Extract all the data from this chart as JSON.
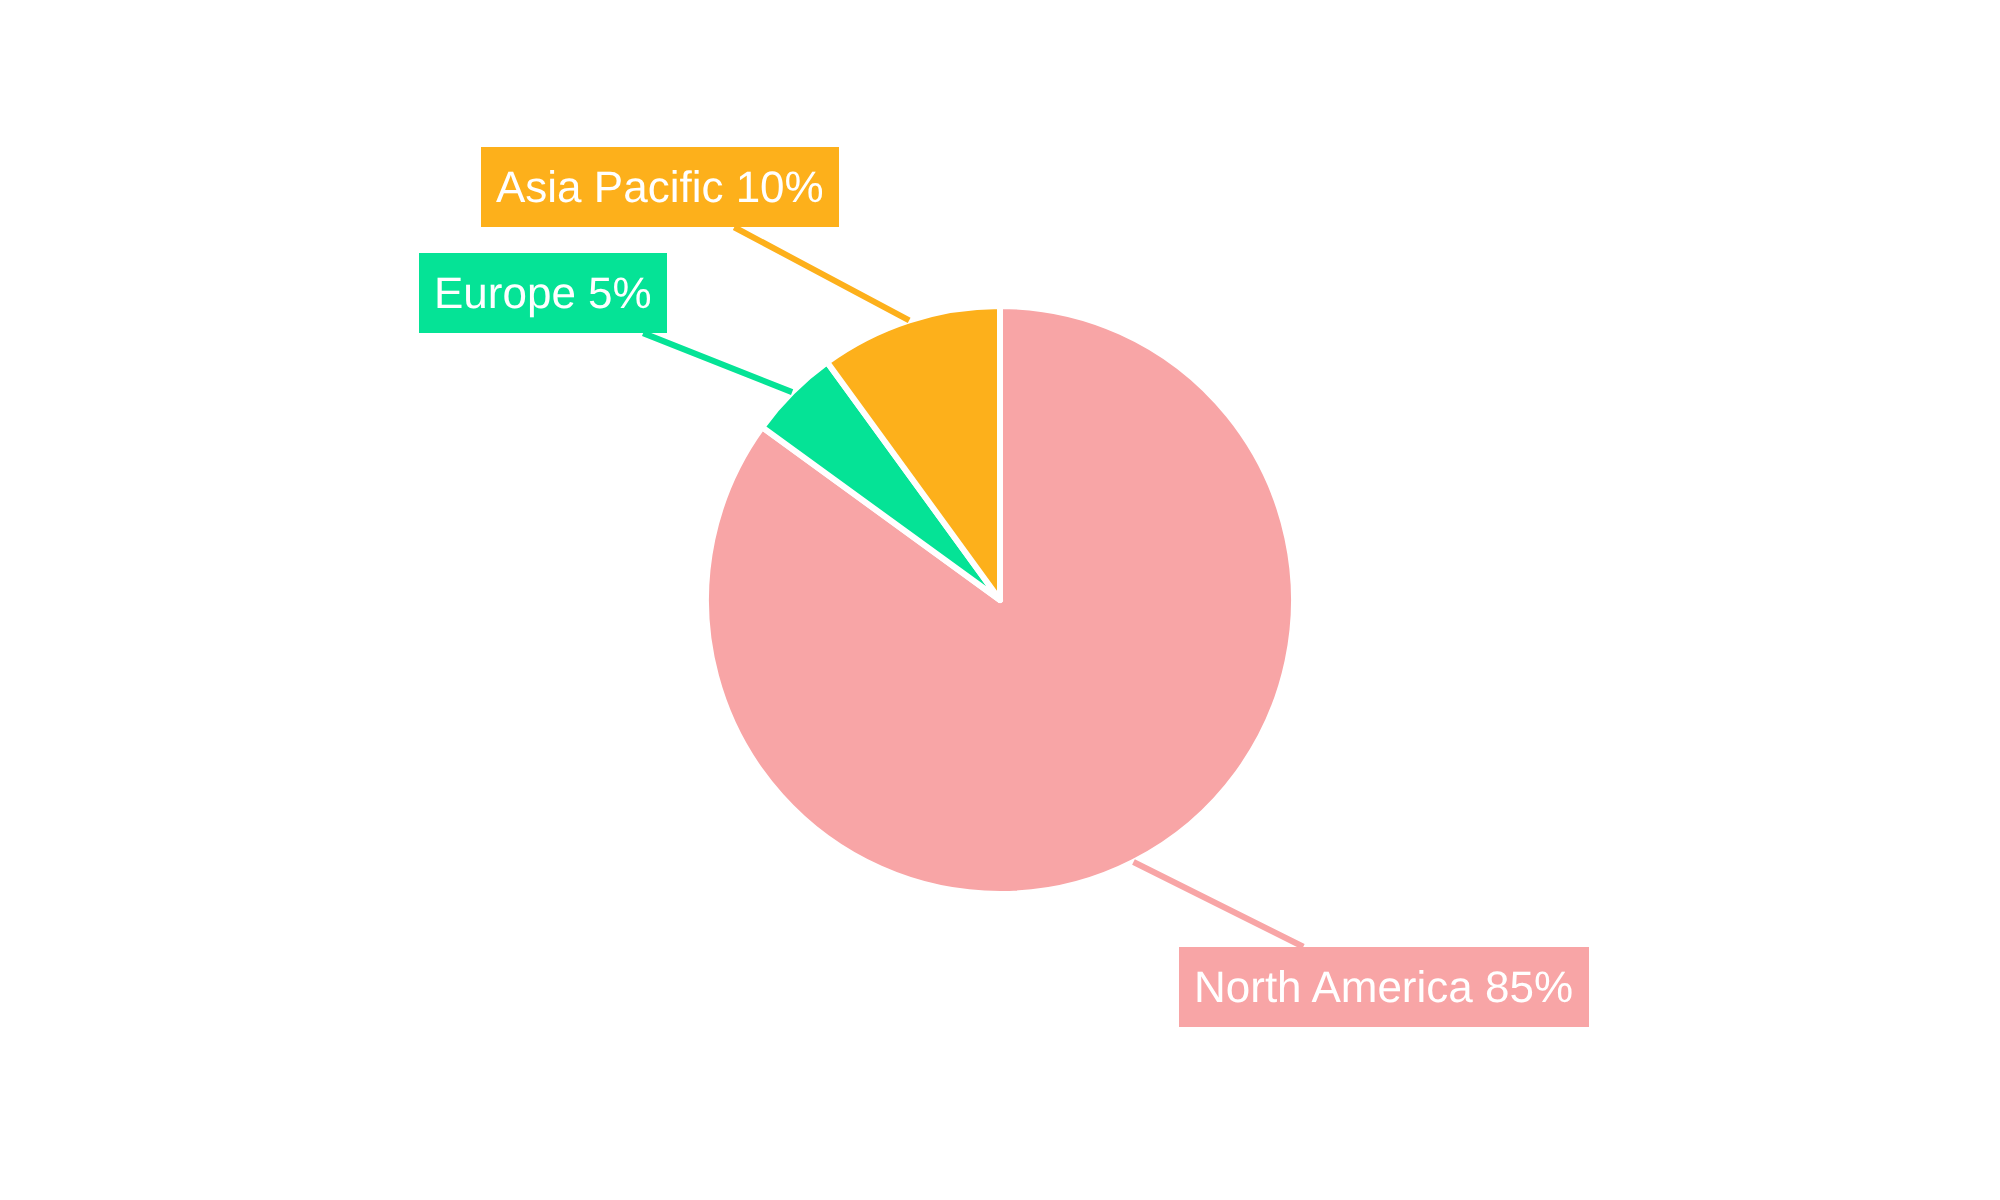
{
  "chart_data": {
    "type": "pie",
    "categories": [
      "North America",
      "Europe",
      "Asia Pacific"
    ],
    "values": [
      85,
      5,
      10
    ],
    "value_labels": [
      "85%",
      "5%",
      "10%"
    ],
    "colors": [
      "#f8a5a6",
      "#05e396",
      "#fdb01b"
    ],
    "legend": false
  }
}
